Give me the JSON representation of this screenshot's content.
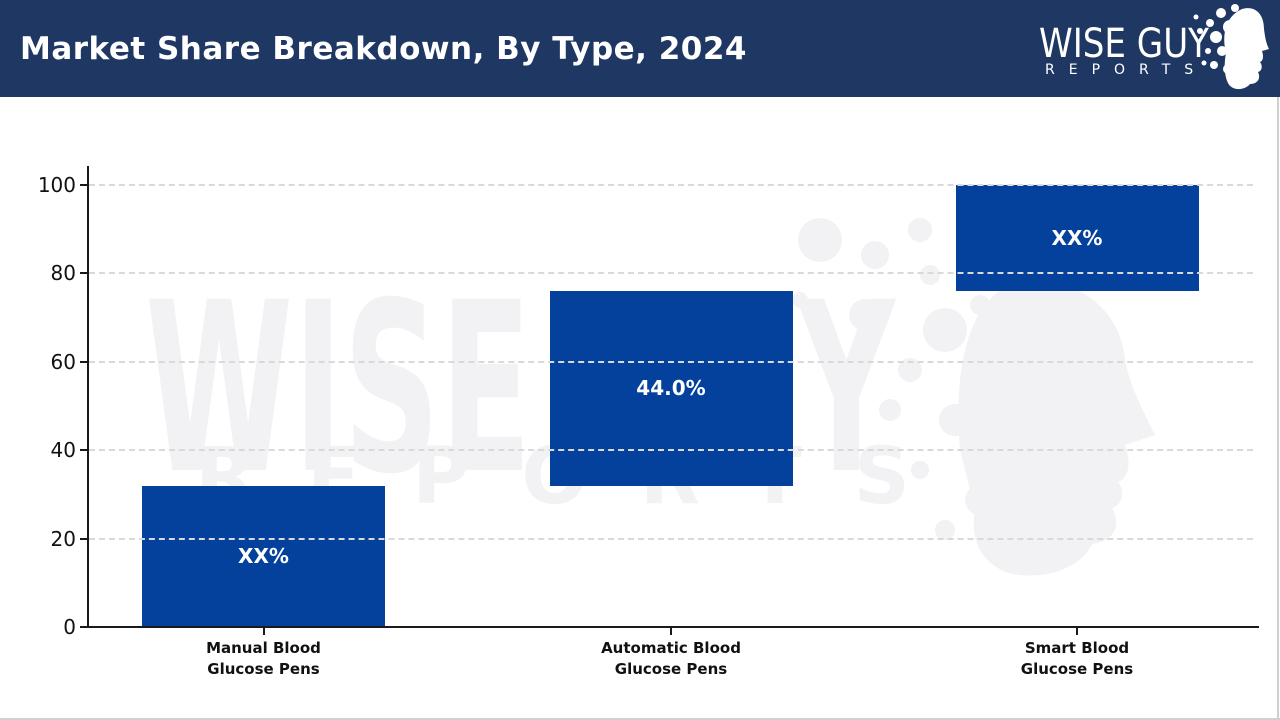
{
  "header": {
    "title": "Market Share Breakdown, By Type, 2024",
    "bg_color": "#1f3763",
    "logo": {
      "brand_line1": "WISE GUY",
      "brand_line2": "REPORTS",
      "icon": "dotted-head-profile-icon"
    }
  },
  "watermark": {
    "text_line1": "WISE GUY",
    "text_line2": "REPORTS",
    "icon": "dotted-head-profile-icon",
    "color": "#f2f2f4"
  },
  "chart_data": {
    "type": "bar",
    "subtype": "floating-waterfall",
    "title": "Market Share Breakdown, By Type, 2024",
    "bar_color": "#04419c",
    "value_label_color": "#ffffff",
    "ylim": [
      0,
      100
    ],
    "yticks": [
      0,
      20,
      40,
      60,
      80,
      100
    ],
    "grid": "horizontal-dashed",
    "legend": "none",
    "categories": [
      "Manual Blood Glucose Pens",
      "Automatic Blood Glucose Pens",
      "Smart Blood Glucose Pens"
    ],
    "bars": [
      {
        "category_lines": [
          "Manual Blood",
          "Glucose Pens"
        ],
        "start": 0,
        "end": 32,
        "segment_size": 32,
        "value_label": "XX%"
      },
      {
        "category_lines": [
          "Automatic Blood",
          "Glucose Pens"
        ],
        "start": 32,
        "end": 76,
        "segment_size": 44,
        "value_label": "44.0%"
      },
      {
        "category_lines": [
          "Smart Blood",
          "Glucose Pens"
        ],
        "start": 76,
        "end": 100,
        "segment_size": 24,
        "value_label": "XX%"
      }
    ]
  }
}
